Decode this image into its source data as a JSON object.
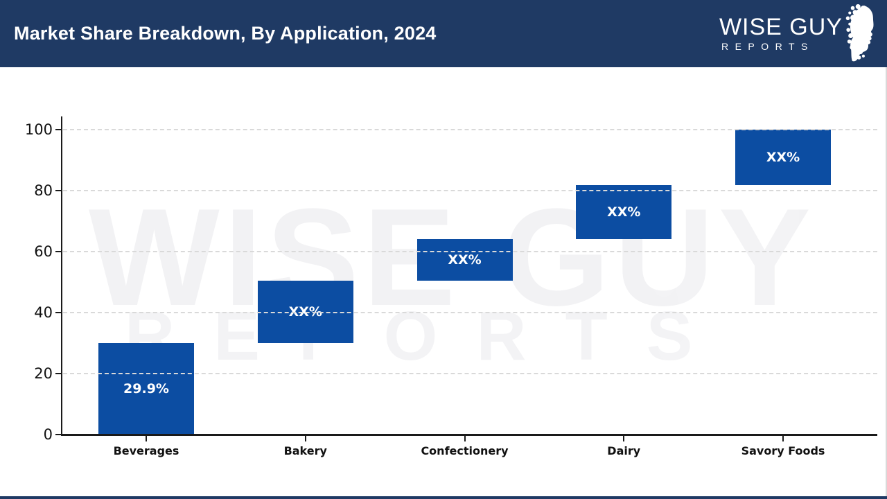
{
  "header": {
    "title": "Market Share Breakdown, By Application, 2024",
    "bg_color": "#1f3a64",
    "logo": {
      "line1": "WISE GUY",
      "line2": "REPORTS",
      "face_icon": "dotted-head-profile"
    }
  },
  "watermark": {
    "line1": "WISE GUY",
    "line2": "REPORTS"
  },
  "footer": {
    "bar_color": "#1f3a64"
  },
  "chart_data": {
    "type": "bar",
    "subtype": "waterfall",
    "title": "Market Share Breakdown, By Application, 2024",
    "xlabel": "",
    "ylabel": "",
    "ylim": [
      0,
      100
    ],
    "yticks": [
      0,
      20,
      40,
      60,
      80,
      100
    ],
    "grid": "horizontal-dashed-over-bars",
    "grid_color": "#d9d9d9",
    "bar_color": "#0c4da2",
    "value_label_color": "#ffffff",
    "categories": [
      "Beverages",
      "Bakery",
      "Confectionery",
      "Dairy",
      "Savory Foods"
    ],
    "segments": [
      {
        "category": "Beverages",
        "start": 0,
        "end": 29.9,
        "label": "29.9%"
      },
      {
        "category": "Bakery",
        "start": 29.9,
        "end": 50.5,
        "label": "XX%"
      },
      {
        "category": "Confectionery",
        "start": 50.5,
        "end": 64.1,
        "label": "XX%"
      },
      {
        "category": "Dairy",
        "start": 64.1,
        "end": 81.8,
        "label": "XX%"
      },
      {
        "category": "Savory Foods",
        "start": 81.8,
        "end": 100.0,
        "label": "XX%"
      }
    ]
  }
}
